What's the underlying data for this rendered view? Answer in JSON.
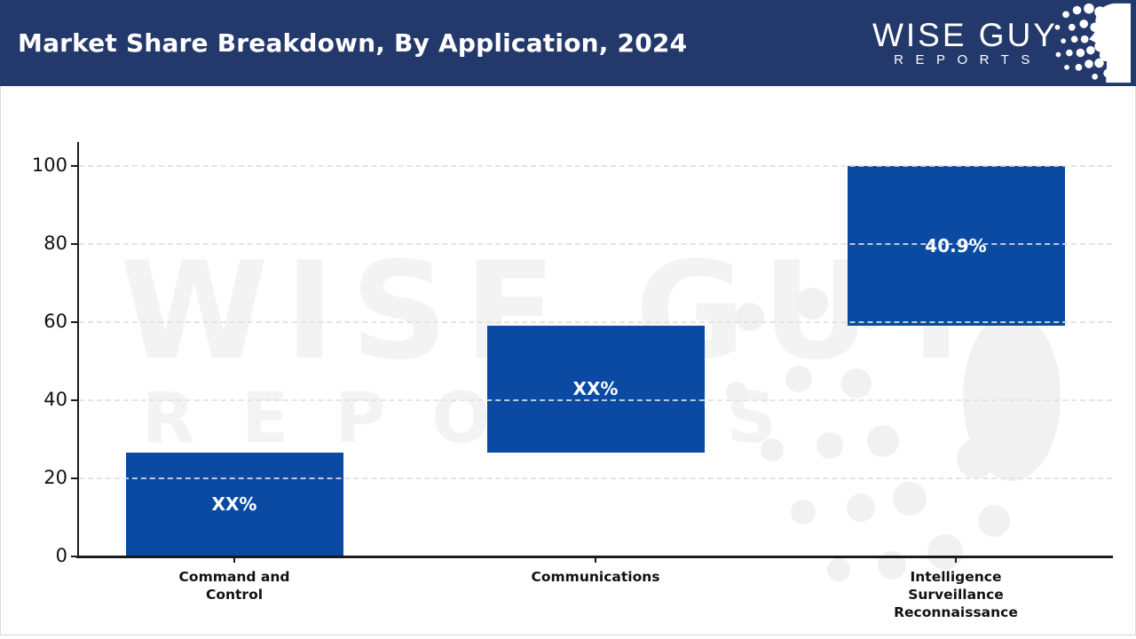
{
  "header": {
    "title": "Market Share Breakdown, By Application, 2024",
    "logo": {
      "line1": "WISE GUY",
      "line2": "REPORTS"
    }
  },
  "watermark": {
    "line1": "WISE GUY",
    "line2": "REPORTS"
  },
  "colors": {
    "header_bg": "#23396b",
    "bar": "#0a4aa3",
    "grid": "#dfdfdf",
    "axis": "#1a1a1a",
    "bar_label": "#ffffff",
    "watermark": "#f3f3f3"
  },
  "chart_data": {
    "type": "bar",
    "subtype": "floating-stacked-percentage",
    "title": "Market Share Breakdown, By Application, 2024",
    "categories": [
      "Command and Control",
      "Communications",
      "Intelligence Surveillance Reconnaissance"
    ],
    "category_display": [
      "Command and\nControl",
      "Communications",
      "Intelligence\nSurveillance\nReconnaissance"
    ],
    "bars": [
      {
        "category": "Command and Control",
        "start": 0,
        "end": 26.5,
        "value": 26.5,
        "label": "XX%"
      },
      {
        "category": "Communications",
        "start": 26.5,
        "end": 59.1,
        "value": 32.6,
        "label": "XX%"
      },
      {
        "category": "Intelligence Surveillance Reconnaissance",
        "start": 59.1,
        "end": 100,
        "value": 40.9,
        "label": "40.9%"
      }
    ],
    "xlabel": "",
    "ylabel": "",
    "ylim": [
      0,
      100
    ],
    "yticks": [
      0,
      20,
      40,
      60,
      80,
      100
    ],
    "grid": "horizontal-dashed",
    "legend": "none",
    "bar_color": "#0a4aa3"
  }
}
